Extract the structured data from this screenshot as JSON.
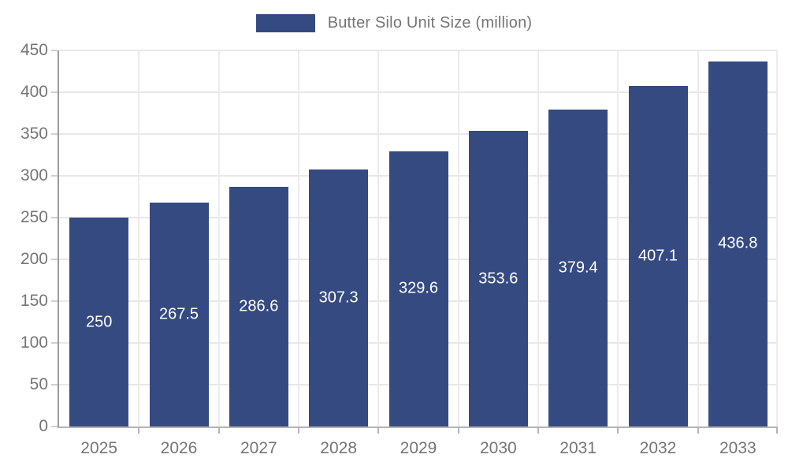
{
  "legend": {
    "label": "Butter Silo Unit Size (million)",
    "swatch_color": "#364a82"
  },
  "chart_data": {
    "type": "bar",
    "title": "",
    "xlabel": "",
    "ylabel": "",
    "categories": [
      "2025",
      "2026",
      "2027",
      "2028",
      "2029",
      "2030",
      "2031",
      "2032",
      "2033"
    ],
    "series": [
      {
        "name": "Butter Silo Unit Size (million)",
        "values": [
          250,
          267.5,
          286.6,
          307.3,
          329.6,
          353.6,
          379.4,
          407.1,
          436.8
        ]
      }
    ],
    "data_labels": [
      "250",
      "267.5",
      "286.6",
      "307.3",
      "329.6",
      "353.6",
      "379.4",
      "407.1",
      "436.8"
    ],
    "ylim": [
      0,
      450
    ],
    "ytick_step": 50,
    "yticks": [
      0,
      50,
      100,
      150,
      200,
      250,
      300,
      350,
      400,
      450
    ],
    "grid": true,
    "legend_position": "top-center",
    "colors": {
      "bar": "#364a82",
      "bar_label": "#ffffff",
      "axis_text": "#757575",
      "gridline": "#e8e8e8",
      "axis_line": "#9b9b9b",
      "background": "#ffffff"
    }
  }
}
